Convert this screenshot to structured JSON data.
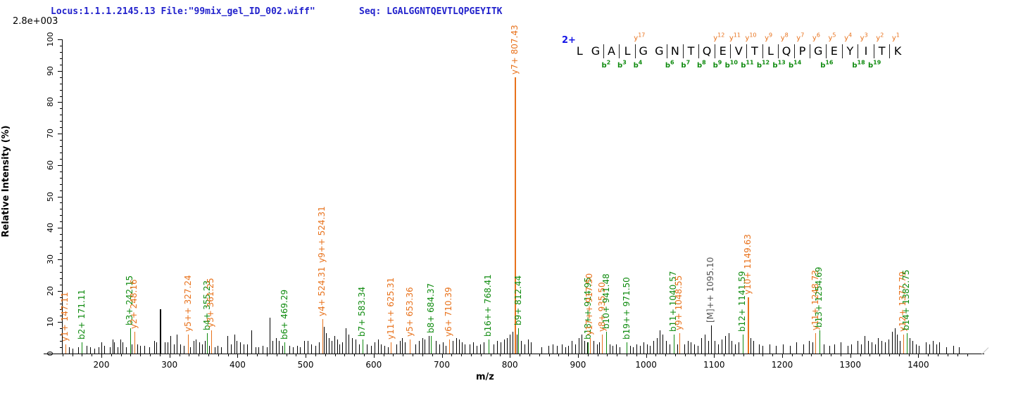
{
  "header": {
    "locus_file": "Locus:1.1.1.2145.13 File:\"99mix_gel_ID_002.wiff\"",
    "seq_label": "Seq: LGALGGNTQEVTLQPGEYITK"
  },
  "colors": {
    "y_ion": "#e8721c",
    "b_ion": "#0f8b0f",
    "precursor_label": "#555555",
    "peak": "#000000",
    "header_text": "#2222cc",
    "charge_label": "#1414e6",
    "axis": "#000000"
  },
  "sequence": {
    "charge": "2+",
    "residues": [
      "L",
      "G",
      "A",
      "L",
      "G",
      "G",
      "N",
      "T",
      "Q",
      "E",
      "V",
      "T",
      "L",
      "Q",
      "P",
      "G",
      "E",
      "Y",
      "I",
      "T",
      "K"
    ],
    "cleavages": [
      {
        "after": 2,
        "b": "b2"
      },
      {
        "after": 3,
        "b": "b3"
      },
      {
        "after": 4,
        "b": "b4",
        "y": "y17"
      },
      {
        "after": 6,
        "b": "b6"
      },
      {
        "after": 7,
        "b": "b7"
      },
      {
        "after": 8,
        "b": "b8"
      },
      {
        "after": 9,
        "b": "b9",
        "y": "y12"
      },
      {
        "after": 10,
        "b": "b10",
        "y": "y11"
      },
      {
        "after": 11,
        "b": "b11",
        "y": "y10"
      },
      {
        "after": 12,
        "b": "b12",
        "y": "y9"
      },
      {
        "after": 13,
        "b": "b13",
        "y": "y8"
      },
      {
        "after": 14,
        "b": "b14",
        "y": "y7"
      },
      {
        "after": 15,
        "y": "y6"
      },
      {
        "after": 16,
        "b": "b16",
        "y": "y5"
      },
      {
        "after": 17,
        "y": "y4"
      },
      {
        "after": 18,
        "b": "b18",
        "y": "y3"
      },
      {
        "after": 19,
        "b": "b19",
        "y": "y2"
      },
      {
        "after": 20,
        "y": "y1"
      }
    ]
  },
  "chart_data": {
    "type": "bar",
    "subtype": "mass-spectrum",
    "title": "",
    "xlabel": "m/z",
    "ylabel": "Relative  Intensity  (%)",
    "base_peak_intensity": "2.8e+003",
    "xlim": [
      142,
      1490
    ],
    "ylim": [
      0,
      100
    ],
    "x_ticks": [
      200,
      300,
      400,
      500,
      600,
      700,
      800,
      900,
      1000,
      1100,
      1200,
      1300,
      1400
    ],
    "y_ticks": [
      0,
      10,
      20,
      30,
      40,
      50,
      60,
      70,
      80,
      90,
      100
    ],
    "y_minor_step": 2,
    "grid": false,
    "labeled_peaks": [
      {
        "mz": 147.11,
        "intensity": 3,
        "ion": "y",
        "labels": [
          "y1+ 147.11"
        ]
      },
      {
        "mz": 171.11,
        "intensity": 3.5,
        "ion": "b",
        "labels": [
          "b2+ 171.11"
        ]
      },
      {
        "mz": 242.15,
        "intensity": 8,
        "ion": "b",
        "labels": [
          "b3+ 242.15"
        ]
      },
      {
        "mz": 248.16,
        "intensity": 7,
        "ion": "y",
        "labels": [
          "y2+ 248.16"
        ]
      },
      {
        "mz": 327.24,
        "intensity": 6,
        "ion": "y",
        "labels": [
          "y5++ 327.24"
        ]
      },
      {
        "mz": 355.23,
        "intensity": 6.5,
        "ion": "b",
        "labels": [
          "b4+ 355.23"
        ]
      },
      {
        "mz": 361.25,
        "intensity": 7.5,
        "ion": "y",
        "labels": [
          "y3+ 361.25"
        ]
      },
      {
        "mz": 469.29,
        "intensity": 3.5,
        "ion": "b",
        "labels": [
          "b6+ 469.29"
        ]
      },
      {
        "mz": 524.31,
        "intensity": 11,
        "ion": "y",
        "labels": [
          "y4+ 524.31",
          "y9++ 524.31"
        ]
      },
      {
        "mz": 583.34,
        "intensity": 4.5,
        "ion": "b",
        "labels": [
          "b7+ 583.34"
        ]
      },
      {
        "mz": 625.31,
        "intensity": 3.5,
        "ion": "y",
        "labels": [
          "y11++ 625.31"
        ]
      },
      {
        "mz": 653.36,
        "intensity": 4.5,
        "ion": "y",
        "labels": [
          "y5+ 653.36"
        ]
      },
      {
        "mz": 684.37,
        "intensity": 5.5,
        "ion": "b",
        "labels": [
          "b8+ 684.37"
        ]
      },
      {
        "mz": 710.39,
        "intensity": 4.5,
        "ion": "y",
        "labels": [
          "y6+ 710.39"
        ]
      },
      {
        "mz": 768.41,
        "intensity": 4.5,
        "ion": "b",
        "labels": [
          "b16++ 768.41"
        ]
      },
      {
        "mz": 807.43,
        "intensity": 88,
        "ion": "y",
        "labels": [
          "y7+ 807.43"
        ]
      },
      {
        "mz": 812.44,
        "intensity": 8,
        "ion": "b",
        "labels": [
          "b9+ 812.44"
        ]
      },
      {
        "mz": 914.95,
        "intensity": 3.5,
        "ion": "b",
        "labels": [
          "b18++ 914.95"
        ]
      },
      {
        "mz": 917.5,
        "intensity": 5,
        "ion": "y",
        "labels": [
          "y17++ 917.50"
        ]
      },
      {
        "mz": 935.5,
        "intensity": 6,
        "ion": "y",
        "labels": [
          "y8+ 935.50"
        ]
      },
      {
        "mz": 941.48,
        "intensity": 7,
        "ion": "b",
        "labels": [
          "b10+ 941.48"
        ]
      },
      {
        "mz": 971.5,
        "intensity": 3.5,
        "ion": "b",
        "labels": [
          "b19++ 971.50"
        ]
      },
      {
        "mz": 1040.57,
        "intensity": 6,
        "ion": "b",
        "labels": [
          "b11+ 1040.57"
        ]
      },
      {
        "mz": 1048.55,
        "intensity": 6.5,
        "ion": "y",
        "labels": [
          "y9+ 1048.55"
        ]
      },
      {
        "mz": 1095.1,
        "intensity": 9,
        "ion": "M",
        "labels": [
          "[M]++ 1095.10"
        ]
      },
      {
        "mz": 1141.59,
        "intensity": 6,
        "ion": "b",
        "labels": [
          "b12+ 1141.59"
        ]
      },
      {
        "mz": 1149.63,
        "intensity": 18,
        "ion": "y",
        "labels": [
          "y10+ 1149.63"
        ]
      },
      {
        "mz": 1248.73,
        "intensity": 6.5,
        "ion": "y",
        "labels": [
          "y11+ 1248.73"
        ]
      },
      {
        "mz": 1254.69,
        "intensity": 7.5,
        "ion": "b",
        "labels": [
          "b13+ 1254.69"
        ]
      },
      {
        "mz": 1377.79,
        "intensity": 6,
        "ion": "y",
        "labels": [
          "y12+ 1377.79"
        ]
      },
      {
        "mz": 1382.75,
        "intensity": 6.5,
        "ion": "b",
        "labels": [
          "b14+ 1382.75"
        ]
      }
    ],
    "unlabeled_peaks": [
      [
        152,
        2
      ],
      [
        158,
        1.5
      ],
      [
        166,
        2
      ],
      [
        178,
        2.5
      ],
      [
        183,
        2
      ],
      [
        190,
        1.5
      ],
      [
        196,
        2
      ],
      [
        200,
        3.5
      ],
      [
        204,
        2.5
      ],
      [
        212,
        2
      ],
      [
        217,
        4.5
      ],
      [
        219,
        3.5
      ],
      [
        224,
        2
      ],
      [
        228,
        4.5
      ],
      [
        231,
        3.5
      ],
      [
        236,
        2
      ],
      [
        244,
        3
      ],
      [
        253,
        3
      ],
      [
        257,
        2.5
      ],
      [
        263,
        2.5
      ],
      [
        270,
        2
      ],
      [
        278,
        4
      ],
      [
        281,
        3.5
      ],
      [
        286,
        14
      ],
      [
        293,
        3.5
      ],
      [
        297,
        3.5
      ],
      [
        301,
        5.5
      ],
      [
        306,
        3
      ],
      [
        311,
        6
      ],
      [
        316,
        3
      ],
      [
        321,
        2.5
      ],
      [
        330,
        2
      ],
      [
        335,
        4
      ],
      [
        339,
        4.5
      ],
      [
        344,
        3.5
      ],
      [
        348,
        3
      ],
      [
        352,
        4
      ],
      [
        358,
        2.5
      ],
      [
        366,
        2
      ],
      [
        371,
        2.5
      ],
      [
        376,
        2
      ],
      [
        385,
        5.5
      ],
      [
        390,
        3
      ],
      [
        395,
        6
      ],
      [
        399,
        4
      ],
      [
        404,
        3.5
      ],
      [
        409,
        3
      ],
      [
        414,
        3
      ],
      [
        420,
        7.5
      ],
      [
        426,
        2
      ],
      [
        431,
        2
      ],
      [
        437,
        2.5
      ],
      [
        443,
        2
      ],
      [
        447,
        11.5
      ],
      [
        451,
        4
      ],
      [
        456,
        5
      ],
      [
        461,
        4
      ],
      [
        466,
        2.5
      ],
      [
        476,
        2.5
      ],
      [
        481,
        2
      ],
      [
        487,
        2.5
      ],
      [
        492,
        2
      ],
      [
        498,
        4
      ],
      [
        503,
        4
      ],
      [
        508,
        3
      ],
      [
        514,
        2.5
      ],
      [
        520,
        3.5
      ],
      [
        527,
        8.5
      ],
      [
        530,
        6.5
      ],
      [
        534,
        5
      ],
      [
        538,
        4
      ],
      [
        542,
        5.5
      ],
      [
        546,
        4.5
      ],
      [
        550,
        3
      ],
      [
        554,
        3.5
      ],
      [
        559,
        8
      ],
      [
        563,
        6
      ],
      [
        568,
        5
      ],
      [
        573,
        4.5
      ],
      [
        578,
        3
      ],
      [
        590,
        3
      ],
      [
        596,
        2.5
      ],
      [
        601,
        3.5
      ],
      [
        606,
        4.5
      ],
      [
        611,
        3
      ],
      [
        616,
        2.5
      ],
      [
        621,
        2
      ],
      [
        633,
        3
      ],
      [
        638,
        4
      ],
      [
        642,
        5
      ],
      [
        646,
        3.5
      ],
      [
        661,
        3
      ],
      [
        666,
        4
      ],
      [
        671,
        5
      ],
      [
        675,
        4.5
      ],
      [
        681,
        5.5
      ],
      [
        691,
        4
      ],
      [
        696,
        3
      ],
      [
        701,
        3.5
      ],
      [
        706,
        2.5
      ],
      [
        716,
        4
      ],
      [
        721,
        5
      ],
      [
        725,
        4.5
      ],
      [
        729,
        3.5
      ],
      [
        734,
        3
      ],
      [
        741,
        3
      ],
      [
        746,
        3.5
      ],
      [
        751,
        2.5
      ],
      [
        756,
        3
      ],
      [
        761,
        3.5
      ],
      [
        776,
        3
      ],
      [
        781,
        4
      ],
      [
        786,
        3.5
      ],
      [
        791,
        4.5
      ],
      [
        796,
        5
      ],
      [
        800,
        6
      ],
      [
        804,
        7
      ],
      [
        810,
        6
      ],
      [
        816,
        4
      ],
      [
        821,
        3
      ],
      [
        827,
        4.5
      ],
      [
        831,
        3.5
      ],
      [
        846,
        2
      ],
      [
        857,
        2.5
      ],
      [
        863,
        3
      ],
      [
        869,
        2.5
      ],
      [
        876,
        3
      ],
      [
        881,
        2
      ],
      [
        886,
        2.5
      ],
      [
        891,
        4
      ],
      [
        896,
        3
      ],
      [
        901,
        5
      ],
      [
        905,
        6
      ],
      [
        909,
        4
      ],
      [
        913,
        3.5
      ],
      [
        923,
        4
      ],
      [
        928,
        3
      ],
      [
        931,
        3.5
      ],
      [
        947,
        3
      ],
      [
        951,
        2.5
      ],
      [
        956,
        3
      ],
      [
        961,
        2
      ],
      [
        977,
        2.5
      ],
      [
        981,
        2
      ],
      [
        986,
        3
      ],
      [
        991,
        2.5
      ],
      [
        996,
        3.5
      ],
      [
        1001,
        3
      ],
      [
        1006,
        2.5
      ],
      [
        1011,
        4
      ],
      [
        1016,
        5
      ],
      [
        1020,
        7.5
      ],
      [
        1024,
        6
      ],
      [
        1029,
        4
      ],
      [
        1034,
        3
      ],
      [
        1046,
        3
      ],
      [
        1056,
        3
      ],
      [
        1061,
        4
      ],
      [
        1066,
        3.5
      ],
      [
        1071,
        3
      ],
      [
        1076,
        2.5
      ],
      [
        1081,
        5
      ],
      [
        1086,
        6
      ],
      [
        1091,
        4
      ],
      [
        1101,
        4
      ],
      [
        1106,
        3
      ],
      [
        1111,
        4.5
      ],
      [
        1116,
        5.5
      ],
      [
        1121,
        6.5
      ],
      [
        1126,
        4
      ],
      [
        1131,
        3
      ],
      [
        1136,
        3.5
      ],
      [
        1153,
        5
      ],
      [
        1158,
        4
      ],
      [
        1166,
        3
      ],
      [
        1171,
        2.5
      ],
      [
        1181,
        3
      ],
      [
        1191,
        2.5
      ],
      [
        1201,
        3
      ],
      [
        1211,
        2.5
      ],
      [
        1221,
        3.5
      ],
      [
        1231,
        3
      ],
      [
        1239,
        4
      ],
      [
        1244,
        3.5
      ],
      [
        1261,
        3
      ],
      [
        1269,
        2.5
      ],
      [
        1276,
        3
      ],
      [
        1286,
        3.5
      ],
      [
        1296,
        2.5
      ],
      [
        1301,
        3
      ],
      [
        1311,
        4
      ],
      [
        1316,
        3
      ],
      [
        1321,
        5.5
      ],
      [
        1326,
        4
      ],
      [
        1331,
        3.5
      ],
      [
        1336,
        3
      ],
      [
        1341,
        5
      ],
      [
        1346,
        4
      ],
      [
        1351,
        3.5
      ],
      [
        1356,
        4.5
      ],
      [
        1361,
        7
      ],
      [
        1365,
        8
      ],
      [
        1369,
        6
      ],
      [
        1373,
        4
      ],
      [
        1387,
        5
      ],
      [
        1391,
        4
      ],
      [
        1396,
        3
      ],
      [
        1401,
        2.5
      ],
      [
        1411,
        3.5
      ],
      [
        1416,
        3
      ],
      [
        1421,
        4
      ],
      [
        1426,
        3
      ],
      [
        1431,
        3.5
      ],
      [
        1441,
        2
      ],
      [
        1451,
        2.5
      ],
      [
        1459,
        2
      ]
    ]
  }
}
